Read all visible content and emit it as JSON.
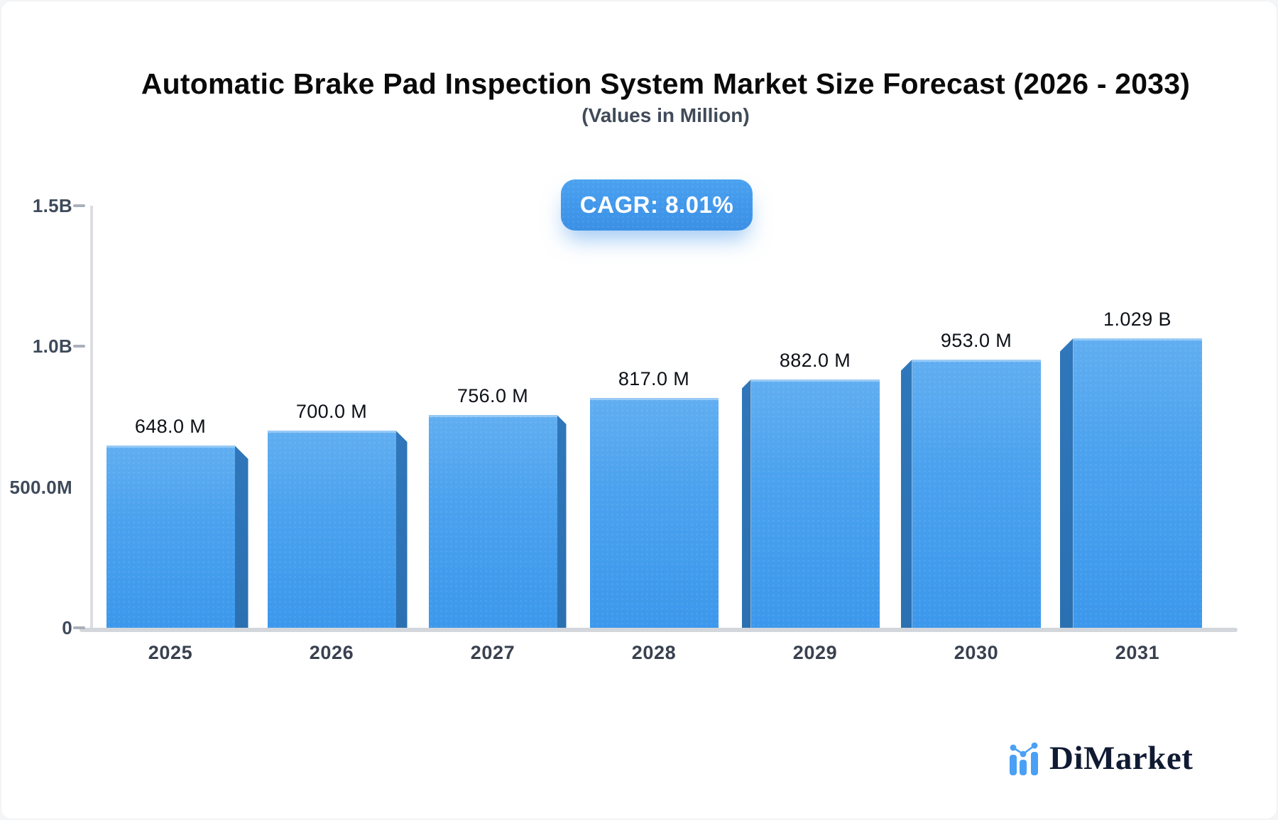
{
  "header": {
    "title": "Automatic Brake Pad Inspection System Market Size Forecast (2026 - 2033)",
    "subtitle": "(Values in Million)",
    "cagr_badge": "CAGR: 8.01%"
  },
  "chart_data": {
    "type": "bar",
    "title": "Automatic Brake Pad Inspection System Market Size Forecast (2026 - 2033)",
    "subtitle": "(Values in Million)",
    "cagr_pct": 8.01,
    "categories": [
      "2025",
      "2026",
      "2027",
      "2028",
      "2029",
      "2030",
      "2031"
    ],
    "values_millions": [
      648,
      700,
      756,
      817,
      882,
      953,
      1029
    ],
    "value_labels": [
      "648.0 M",
      "700.0 M",
      "756.0 M",
      "817.0 M",
      "882.0 M",
      "953.0 M",
      "1.029 B"
    ],
    "ylim_millions": [
      0,
      1500
    ],
    "y_ticks": [
      {
        "label": "1.5B",
        "value_millions": 1500,
        "has_dash": true
      },
      {
        "label": "1.0B",
        "value_millions": 1000,
        "has_dash": true
      },
      {
        "label": "500.0M",
        "value_millions": 500,
        "has_dash": false
      },
      {
        "label": "0",
        "value_millions": 0,
        "has_dash": true
      }
    ],
    "grid": "off",
    "legend": "none",
    "bar_color": "#3C98EC"
  },
  "colors": {
    "bar_face_top": "#61AEF1",
    "bar_face_bottom": "#3C98EC",
    "bar_side": "#2E74B6",
    "badge_bg": "#4299EC",
    "badge_text": "#FFFFFF",
    "axis_line": "#DBDDE1",
    "baseline": "#D3D6DB",
    "tick_dash": "#AAB0BA",
    "y_label": "#3E4A5A",
    "x_label": "#39414F",
    "value_label": "#0D1117",
    "title": "#0A0A0A",
    "subtitle": "#404A59",
    "logo_text": "#101B33",
    "logo_icon": "#4AA0F5"
  },
  "logo": {
    "text": "DiMarket",
    "icon": "bar-chart-logo-icon"
  }
}
